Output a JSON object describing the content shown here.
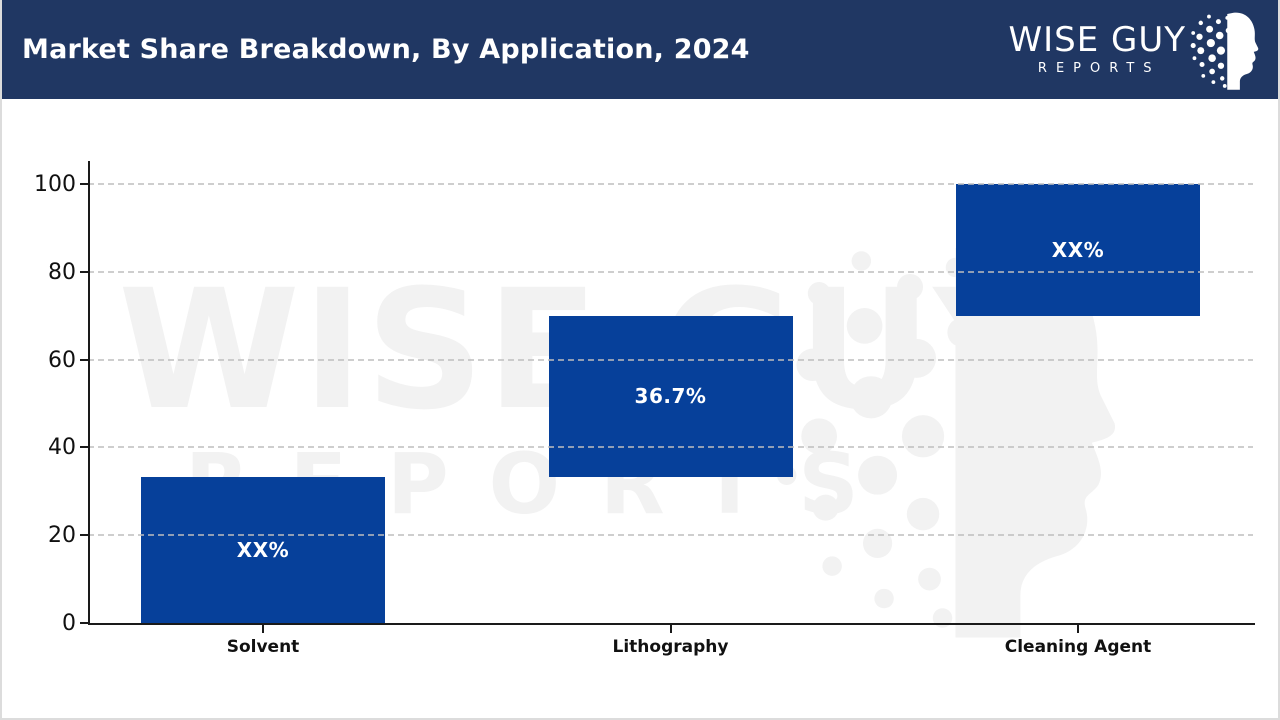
{
  "header": {
    "title": "Market Share Breakdown, By Application, 2024",
    "logo": {
      "line1": "WISE GUY",
      "line2": "REPORTS"
    }
  },
  "watermark": {
    "line1": "WISE GUY",
    "line2": "REPORTS"
  },
  "colors": {
    "header_bg": "#203763",
    "bar": "#06409a",
    "bar_label": "#ffffff",
    "axis": "#1a1a1a",
    "grid": "#bebebe",
    "watermark": "#f2f2f2",
    "logo_text": "#ffffff"
  },
  "chart_data": {
    "type": "bar",
    "subtype": "waterfall",
    "title": "Market Share Breakdown, By Application, 2024",
    "categories": [
      "Solvent",
      "Lithography",
      "Cleaning Agent"
    ],
    "segments": [
      {
        "category": "Solvent",
        "start": 0,
        "end": 33.3,
        "label": "XX%"
      },
      {
        "category": "Lithography",
        "start": 33.3,
        "end": 70.0,
        "label": "36.7%"
      },
      {
        "category": "Cleaning Agent",
        "start": 70.0,
        "end": 100,
        "label": "XX%"
      }
    ],
    "ylim": [
      0,
      100
    ],
    "yticks": [
      0,
      20,
      40,
      60,
      80,
      100
    ],
    "grid": "horizontal-dashed",
    "legend": "none"
  }
}
